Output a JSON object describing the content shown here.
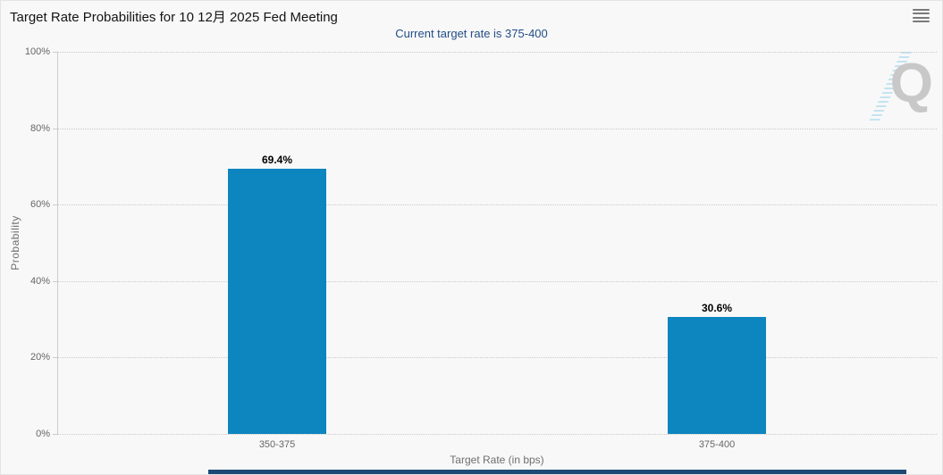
{
  "page": {
    "title": "Target Rate Probabilities for 10 12月 2025 Fed Meeting",
    "subtitle": "Current target rate is 375-400"
  },
  "toolbar": {
    "menu_icon": "hamburger-menu-icon"
  },
  "watermark": {
    "letter": "Q"
  },
  "chart_data": {
    "type": "bar",
    "title": "Target Rate Probabilities for 10 12月 2025 Fed Meeting",
    "subtitle": "Current target rate is 375-400",
    "categories": [
      "350-375",
      "375-400"
    ],
    "values": [
      69.4,
      30.6
    ],
    "data_labels": [
      "69.4%",
      "30.6%"
    ],
    "xlabel": "Target Rate (in bps)",
    "ylabel": "Probability",
    "ylim": [
      0,
      100
    ],
    "yticks": [
      0,
      20,
      40,
      60,
      80,
      100
    ],
    "ytick_labels": [
      "0%",
      "20%",
      "40%",
      "60%",
      "80%",
      "100%"
    ],
    "grid": "horizontal-dotted",
    "legend": "none",
    "bar_color": "#0d85bf"
  },
  "colors": {
    "background": "#f8f8f8",
    "bar": "#0d85bf",
    "subtitle_text": "#234d87",
    "axis_text": "#666666",
    "gridline": "#c9c9c9",
    "bottom_strip": "#1d4a75"
  }
}
